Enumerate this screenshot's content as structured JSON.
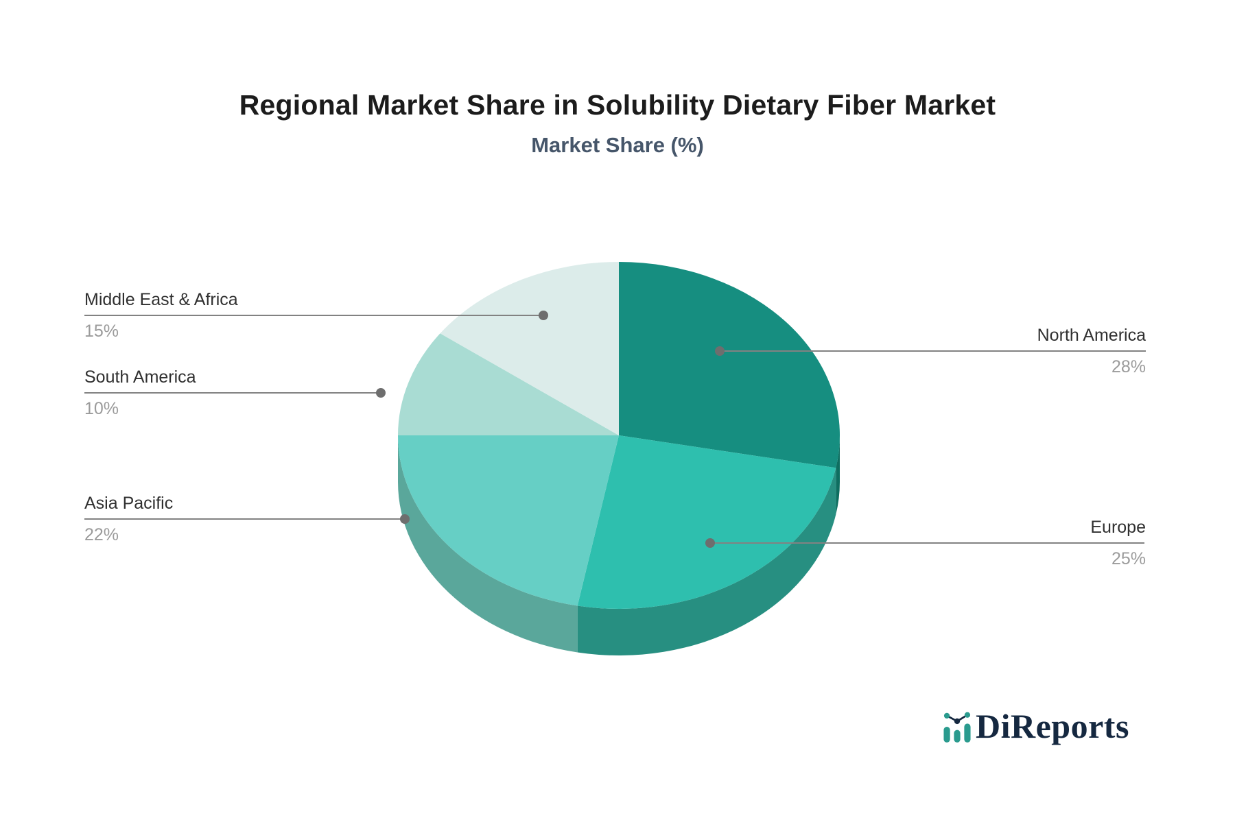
{
  "title": "Regional Market Share in Solubility Dietary Fiber Market",
  "subtitle": "Market Share (%)",
  "chart_data": {
    "type": "pie",
    "title": "Regional Market Share in Solubility Dietary Fiber Market",
    "subtitle": "Market Share (%)",
    "unit": "%",
    "effect": "3d",
    "direction": "clockwise",
    "start_angle_deg": 0,
    "legend": "callout-labels",
    "slices": [
      {
        "label": "North America",
        "value": 28,
        "display": "28%",
        "color": "#168e80",
        "side_color": "#0e6e60"
      },
      {
        "label": "Europe",
        "value": 25,
        "display": "25%",
        "color": "#2ebfae",
        "side_color": "#278f81"
      },
      {
        "label": "Asia Pacific",
        "value": 22,
        "display": "22%",
        "color": "#66cfc5",
        "side_color": "#5aa79b"
      },
      {
        "label": "South America",
        "value": 10,
        "display": "10%",
        "color": "#a9dcd3",
        "side_color": "#8db8b0"
      },
      {
        "label": "Middle East & Africa",
        "value": 15,
        "display": "15%",
        "color": "#dcecea",
        "side_color": "#b8c6c4"
      }
    ],
    "leader_line_color": "#828282",
    "leader_dot_color": "#6e6e6e"
  },
  "logo": {
    "text": "DiReports",
    "icon": "bar-line-chart-icon",
    "icon_color": "#2a9b8e",
    "text_color": "#152840"
  }
}
